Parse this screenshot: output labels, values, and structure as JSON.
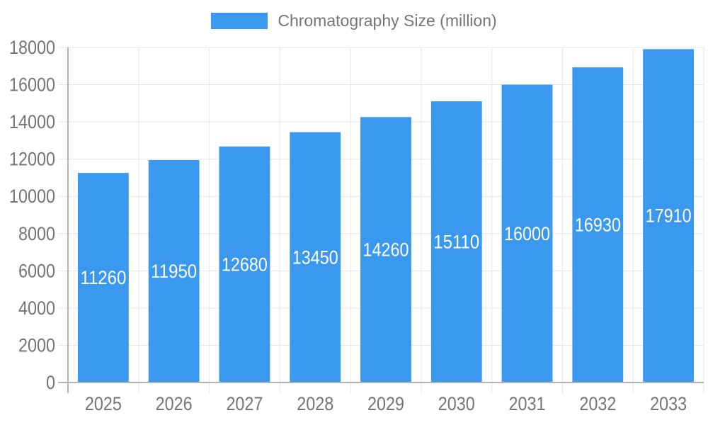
{
  "legend": {
    "items": [
      {
        "label": "Chromatography Size (million)",
        "color": "#3A99EE"
      }
    ]
  },
  "chart_data": {
    "type": "bar",
    "title": "",
    "xlabel": "",
    "ylabel": "",
    "categories": [
      "2025",
      "2026",
      "2027",
      "2028",
      "2029",
      "2030",
      "2031",
      "2032",
      "2033"
    ],
    "series": [
      {
        "name": "Chromatography Size (million)",
        "color": "#3A99EE",
        "values": [
          11260,
          11950,
          12680,
          13450,
          14260,
          15110,
          16000,
          16930,
          17910
        ]
      }
    ],
    "ylim": [
      0,
      18000
    ],
    "ytick_step": 2000,
    "yticks": [
      0,
      2000,
      4000,
      6000,
      8000,
      10000,
      12000,
      14000,
      16000,
      18000
    ],
    "grid": true,
    "legend_position": "top-center",
    "value_labels_position": "inside-center",
    "colors": {
      "bar": "#3A99EE",
      "gridline": "#e6e6e6",
      "axis_line": "#b3b3b3",
      "axis_text": "#757575",
      "value_label": "#ffffff",
      "background": "#ffffff"
    }
  }
}
